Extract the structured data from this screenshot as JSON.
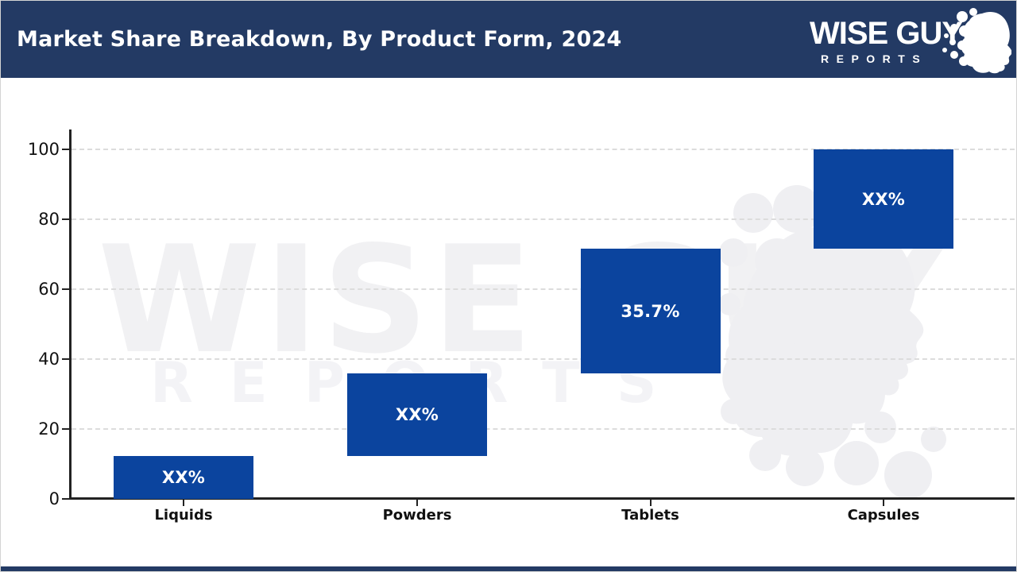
{
  "header": {
    "title": "Market Share Breakdown, By Product Form, 2024",
    "logo": {
      "line1": "WISE GUY",
      "line2": "REPORTS"
    }
  },
  "watermark": {
    "line1": "WISE GUY",
    "line2": "REPORTS"
  },
  "chart_data": {
    "type": "bar",
    "subtype": "waterfall",
    "title": "Market Share Breakdown, By Product Form, 2024",
    "categories": [
      "Liquids",
      "Powders",
      "Tablets",
      "Capsules"
    ],
    "segments": [
      {
        "category": "Liquids",
        "start": 0,
        "end": 12.2,
        "label": "XX%"
      },
      {
        "category": "Powders",
        "start": 12.2,
        "end": 35.8,
        "label": "XX%"
      },
      {
        "category": "Tablets",
        "start": 35.8,
        "end": 71.5,
        "label": "35.7%"
      },
      {
        "category": "Capsules",
        "start": 71.5,
        "end": 100,
        "label": "XX%"
      }
    ],
    "y_ticks": [
      0,
      20,
      40,
      60,
      80,
      100
    ],
    "ylim": [
      0,
      105
    ],
    "xlabel": "",
    "ylabel": "",
    "grid": "horizontal-dashed",
    "legend": "none",
    "colors": {
      "bar": "#0b449e",
      "header_bg": "#233a64",
      "grid": "#dcdcdc",
      "axis": "#222222",
      "watermark": "#f1f1f3"
    }
  }
}
